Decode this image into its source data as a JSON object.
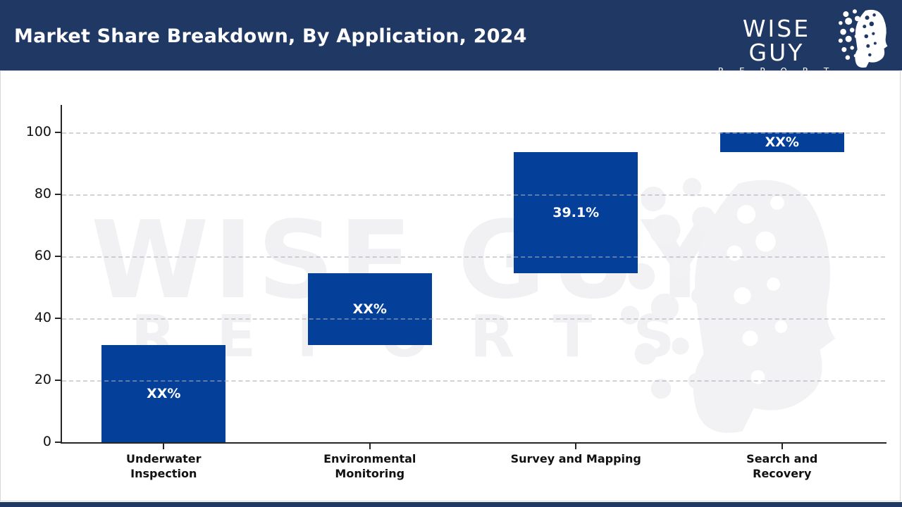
{
  "header": {
    "title": "Market Share Breakdown, By Application, 2024",
    "logo": {
      "line1": "WISE GUY",
      "line2": "R E P O R T S"
    }
  },
  "watermark": {
    "line1": "WISE GUY",
    "line2": "REPORTS"
  },
  "chart_data": {
    "type": "bar",
    "subtype": "floating-segment (waterfall-style) market share bars",
    "title": "Market Share Breakdown, By Application, 2024",
    "xlabel": "",
    "ylabel": "",
    "ylim": [
      0,
      105
    ],
    "y_ticks": [
      0,
      20,
      40,
      60,
      80,
      100
    ],
    "grid": "horizontal dashed gridlines at y ticks, drawn over bars",
    "legend": "none",
    "categories": [
      "Underwater Inspection",
      "Environmental Monitoring",
      "Survey and Mapping",
      "Search and Recovery"
    ],
    "category_label_lines": [
      [
        "Underwater",
        "Inspection"
      ],
      [
        "Environmental",
        "Monitoring"
      ],
      [
        "Survey and Mapping"
      ],
      [
        "Search and",
        "Recovery"
      ]
    ],
    "bars": [
      {
        "category": "Underwater Inspection",
        "start": 0,
        "end": 31.4,
        "label": "XX%"
      },
      {
        "category": "Environmental Monitoring",
        "start": 31.4,
        "end": 54.5,
        "label": "XX%"
      },
      {
        "category": "Survey and Mapping",
        "start": 54.5,
        "end": 93.6,
        "label": "39.1%"
      },
      {
        "category": "Search and Recovery",
        "start": 93.6,
        "end": 100,
        "label": "XX%"
      }
    ],
    "bar_color": "#04409a",
    "value_label_color": "#ffffff"
  },
  "colors": {
    "header_bg": "#1f3864",
    "footer_bg": "#1f3864",
    "bar": "#04409a",
    "watermark": "#f1f1f3",
    "axis": "#262626",
    "gridline": "#d9d9de"
  }
}
